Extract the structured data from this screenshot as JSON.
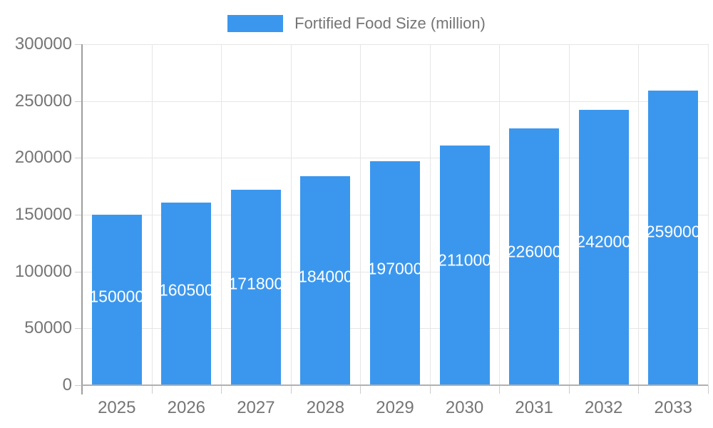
{
  "legend": {
    "title": "Fortified Food Size (million)"
  },
  "chart_data": {
    "type": "bar",
    "title": "Fortified Food Size (million)",
    "categories": [
      "2025",
      "2026",
      "2027",
      "2028",
      "2029",
      "2030",
      "2031",
      "2032",
      "2033"
    ],
    "values": [
      150000,
      160500,
      171800,
      184000,
      197000,
      211000,
      226000,
      242000,
      259000
    ],
    "value_labels": [
      "150000",
      "160500",
      "171800",
      "184000",
      "197000",
      "211000",
      "226000",
      "242000",
      "259000"
    ],
    "xlabel": "",
    "ylabel": "",
    "ylim": [
      0,
      300000
    ],
    "ytick_step": 50000,
    "ytick_labels": [
      "0",
      "50000",
      "100000",
      "150000",
      "200000",
      "250000",
      "300000"
    ],
    "grid": "on",
    "legend_position": "top-center",
    "colors": {
      "bar": "#3b97ee",
      "bar_value_text": "#ffffff",
      "axis_text": "#757575",
      "title_text": "#757575",
      "gridline": "#e6e6e6",
      "axis_line": "#9e9e9e"
    }
  }
}
